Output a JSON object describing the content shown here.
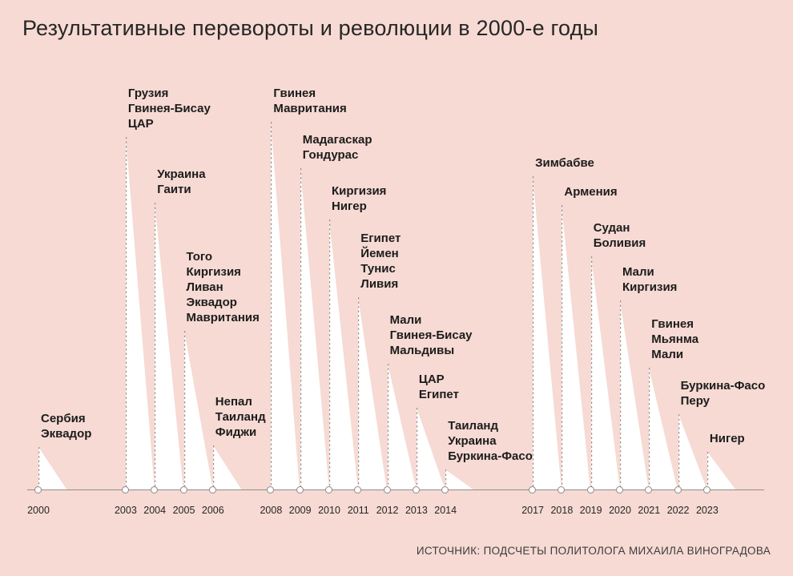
{
  "title": "Результативные перевороты и революции в 2000-е годы",
  "source": "ИСТОЧНИК: ПОДСЧЕТЫ ПОЛИТОЛОГА МИХАИЛА ВИНОГРАДОВА",
  "colors": {
    "background": "#f6dad3",
    "wedge": "#ffffff",
    "text": "#1c1c1c",
    "axis": "#8d8a88",
    "dashed_edge": "#9a938f"
  },
  "chart_data": {
    "type": "timeline-spikes",
    "title": "Результативные перевороты и революции в 2000-е годы",
    "x_axis": {
      "start_year": 2000,
      "end_year": 2023,
      "tick_years": [
        2000,
        2003,
        2004,
        2005,
        2006,
        2008,
        2009,
        2010,
        2011,
        2012,
        2013,
        2014,
        2017,
        2018,
        2019,
        2020,
        2021,
        2022,
        2023
      ]
    },
    "legend": "none",
    "grid": false,
    "events": [
      {
        "year": 2000,
        "countries": [
          "Сербия",
          "Эквадор"
        ],
        "spike_height": 54
      },
      {
        "year": 2003,
        "countries": [
          "Грузия",
          "Гвинея-Бисау",
          "ЦАР"
        ],
        "spike_height": 441
      },
      {
        "year": 2004,
        "countries": [
          "Украина",
          "Гаити"
        ],
        "spike_height": 359
      },
      {
        "year": 2005,
        "countries": [
          "Того",
          "Киргизия",
          "Ливан",
          "Эквадор",
          "Мавритания"
        ],
        "spike_height": 199
      },
      {
        "year": 2006,
        "countries": [
          "Непал",
          "Таиланд",
          "Фиджи"
        ],
        "spike_height": 56
      },
      {
        "year": 2008,
        "countries": [
          "Гвинея",
          "Мавритания"
        ],
        "spike_height": 460
      },
      {
        "year": 2009,
        "countries": [
          "Мадагаскар",
          "Гондурас"
        ],
        "spike_height": 402
      },
      {
        "year": 2010,
        "countries": [
          "Киргизия",
          "Нигер"
        ],
        "spike_height": 338
      },
      {
        "year": 2011,
        "countries": [
          "Египет",
          "Йемен",
          "Тунис",
          "Ливия"
        ],
        "spike_height": 241
      },
      {
        "year": 2012,
        "countries": [
          "Мали",
          "Гвинея-Бисау",
          "Мальдивы"
        ],
        "spike_height": 158
      },
      {
        "year": 2013,
        "countries": [
          "ЦАР",
          "Египет"
        ],
        "spike_height": 103
      },
      {
        "year": 2014,
        "countries": [
          "Таиланд",
          "Украина",
          "Буркина-Фасо"
        ],
        "spike_height": 26
      },
      {
        "year": 2017,
        "countries": [
          "Зимбабве"
        ],
        "spike_height": 392
      },
      {
        "year": 2018,
        "countries": [
          "Армения"
        ],
        "spike_height": 356
      },
      {
        "year": 2019,
        "countries": [
          "Судан",
          "Боливия"
        ],
        "spike_height": 292
      },
      {
        "year": 2020,
        "countries": [
          "Мали",
          "Киргизия"
        ],
        "spike_height": 237
      },
      {
        "year": 2021,
        "countries": [
          "Гвинея",
          "Мьянма",
          "Мали"
        ],
        "spike_height": 153
      },
      {
        "year": 2022,
        "countries": [
          "Буркина-Фасо",
          "Перу"
        ],
        "spike_height": 95
      },
      {
        "year": 2023,
        "countries": [
          "Нигер"
        ],
        "spike_height": 48
      }
    ]
  }
}
